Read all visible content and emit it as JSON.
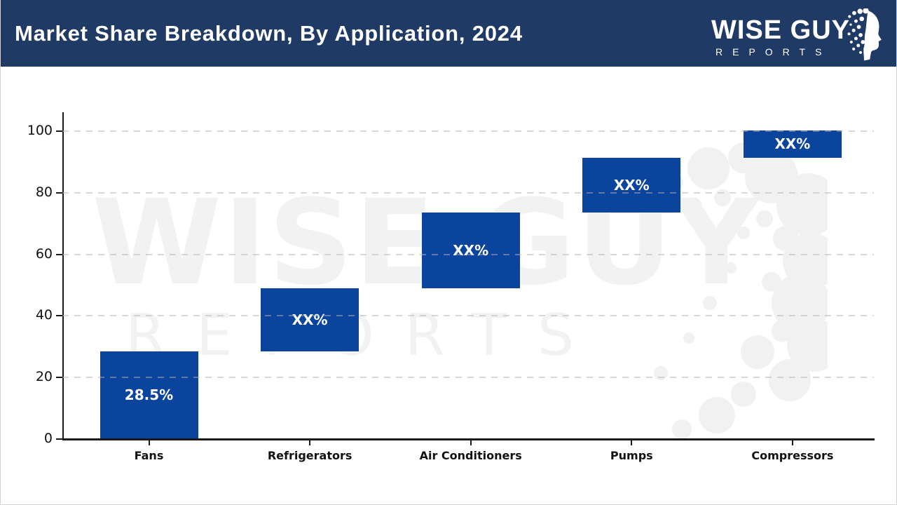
{
  "header": {
    "title": "Market Share Breakdown, By Application, 2024",
    "logo": {
      "line1": "WISE GUY",
      "line2": "REPORTS"
    }
  },
  "watermark": {
    "line1": "WISE GUY",
    "line2": "REPORTS"
  },
  "colors": {
    "header_bg": "#203a66",
    "bar": "#0a449c",
    "grid": "#d9d9d9",
    "axis": "#1a1a1a",
    "tick_text": "#111111",
    "bar_label_text": "#ffffff",
    "watermark": "#f2f2f2"
  },
  "chart_data": {
    "type": "bar",
    "subtype": "floating-waterfall",
    "title": "Market Share Breakdown, By Application, 2024",
    "xlabel": "",
    "ylabel": "",
    "ylim": [
      0,
      106
    ],
    "yticks": [
      0,
      20,
      40,
      60,
      80,
      100
    ],
    "grid": "horizontal-dashed",
    "legend": "none",
    "bar_color": "#0a449c",
    "categories": [
      "Fans",
      "Refrigerators",
      "Air Conditioners",
      "Pumps",
      "Compressors"
    ],
    "segments": [
      {
        "category": "Fans",
        "start": 0,
        "end": 28.5,
        "value": 28.5,
        "label": "28.5%"
      },
      {
        "category": "Refrigerators",
        "start": 28.5,
        "end": 49.0,
        "value": 20.5,
        "label": "XX%"
      },
      {
        "category": "Air Conditioners",
        "start": 49.0,
        "end": 73.5,
        "value": 24.5,
        "label": "XX%"
      },
      {
        "category": "Pumps",
        "start": 73.5,
        "end": 91.3,
        "value": 17.8,
        "label": "XX%"
      },
      {
        "category": "Compressors",
        "start": 91.3,
        "end": 100.3,
        "value": 9.0,
        "label": "XX%"
      }
    ]
  }
}
